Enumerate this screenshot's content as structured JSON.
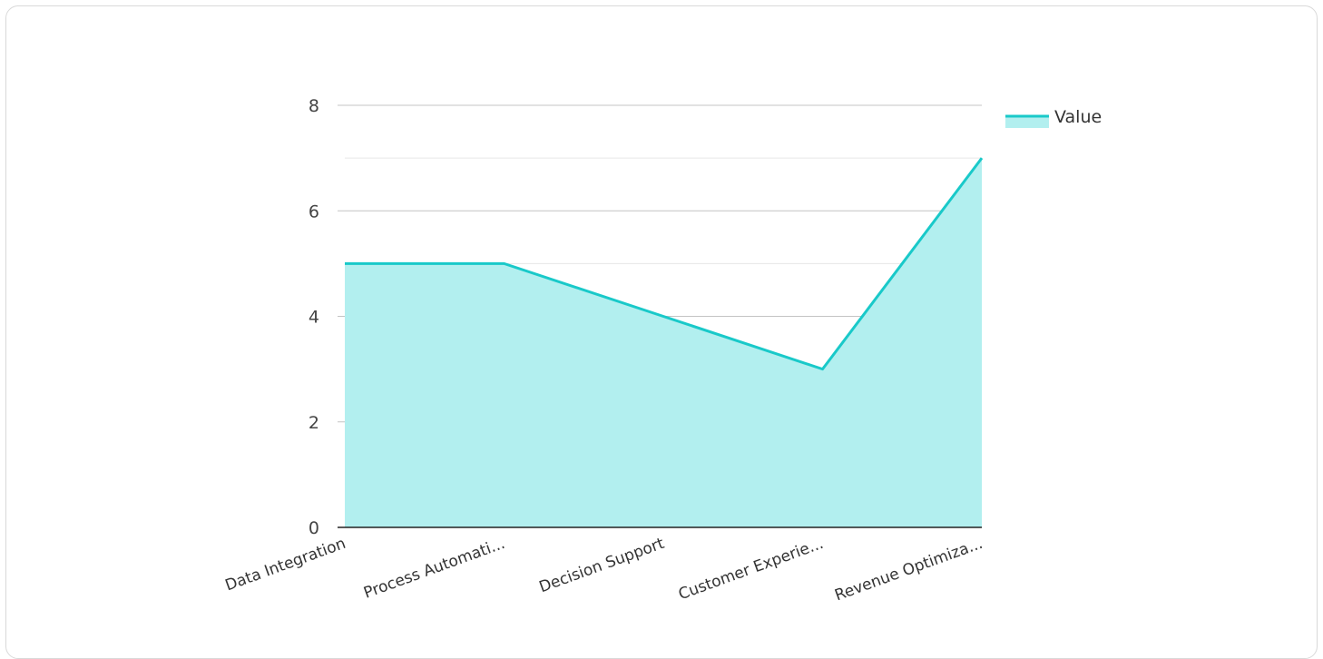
{
  "chart_data": {
    "type": "area",
    "categories": [
      "Data Integration",
      "Process Automati...",
      "Decision Support",
      "Customer Experie...",
      "Revenue Optimiza..."
    ],
    "series": [
      {
        "name": "Value",
        "values": [
          5,
          5,
          4,
          3,
          7
        ]
      }
    ],
    "ylim": [
      0,
      8
    ],
    "yticks": [
      "0",
      "2",
      "4",
      "6",
      "8"
    ],
    "grid": true,
    "legend_position": "top-right",
    "colors": {
      "line": "#19c9c9",
      "fill": "#b2efef",
      "grid_major": "#c4c4c4",
      "grid_minor": "#e6e6e6",
      "axis": "#222222"
    }
  }
}
